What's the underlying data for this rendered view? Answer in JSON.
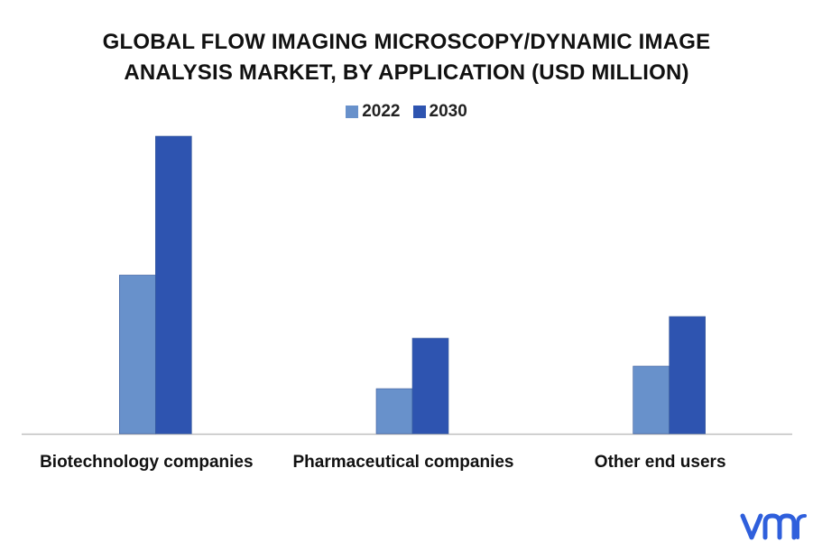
{
  "chart_data": {
    "type": "bar",
    "title_lines": [
      "GLOBAL FLOW IMAGING MICROSCOPY/DYNAMIC IMAGE",
      "ANALYSIS MARKET, BY APPLICATION (USD MILLION)"
    ],
    "categories": [
      "Biotechnology companies",
      "Pharmaceutical companies",
      "Other end users"
    ],
    "series": [
      {
        "name": "2022",
        "values": [
          176,
          50,
          75
        ],
        "color": "#6891cb"
      },
      {
        "name": "2030",
        "values": [
          330,
          106,
          130
        ],
        "color": "#2e54b0"
      }
    ],
    "ylim": [
      0,
      350
    ],
    "grid": false,
    "legend_position": "top-center",
    "axis_color": "#bfbfbf"
  },
  "branding": {
    "logo_text": "vmr",
    "logo_icon": "vmr-logo-icon",
    "logo_color": "#2f5fdc"
  }
}
